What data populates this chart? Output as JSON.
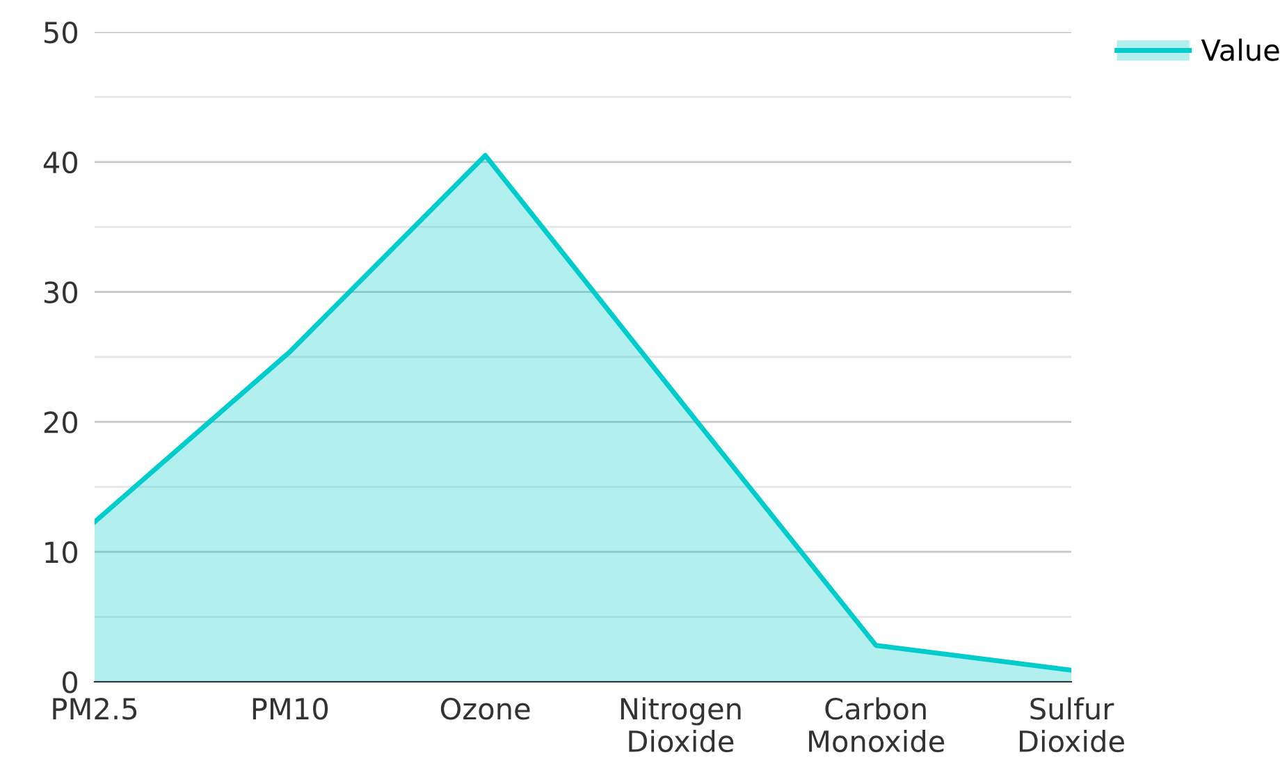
{
  "chart_data": {
    "type": "area",
    "categories": [
      "PM2.5",
      "PM10",
      "Ozone",
      "Nitrogen\nDioxide",
      "Carbon\nMonoxide",
      "Sulfur\nDioxide"
    ],
    "series": [
      {
        "name": "Value",
        "color": "#00cccc",
        "values": [
          12.3,
          25.4,
          40.5,
          21.6,
          2.8,
          0.9
        ]
      }
    ],
    "ylim": [
      0,
      50
    ],
    "yticks": [
      0,
      {
        "value": 5,
        "label": null
      },
      10,
      {
        "value": 15,
        "label": null
      },
      20,
      {
        "value": 25,
        "label": null
      },
      30,
      {
        "value": 35,
        "label": null
      },
      40,
      {
        "value": 45,
        "label": null
      },
      50
    ],
    "grid": "y",
    "legend": "top right",
    "marker": "none",
    "line_style": "solid"
  }
}
